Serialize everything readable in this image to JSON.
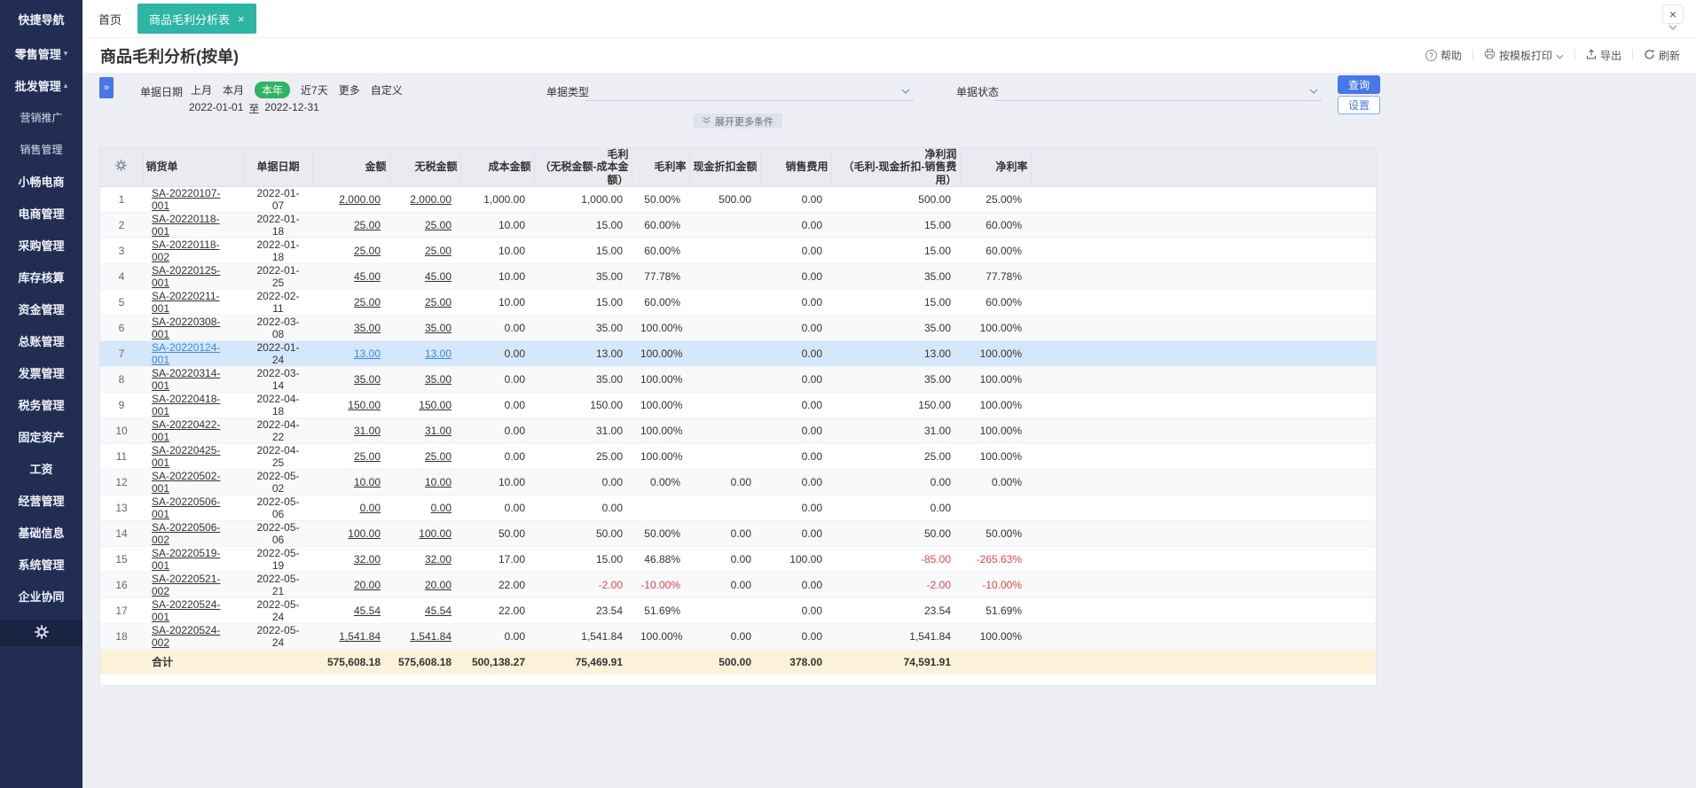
{
  "colors": {
    "sidebar_bg": "#212d52",
    "sidebar_strip": "#1a2342",
    "active_tab_teal": "#2db5a5",
    "quick_selected_green": "#2db55f",
    "primary_blue": "#4878e8",
    "selected_row_blue": "#d5e8fb",
    "totals_row_cream": "#fbf2d9",
    "negative_red": "#e5484d",
    "table_header_gray": "#e9ebf0"
  },
  "sidebar": {
    "items": [
      {
        "label": "快捷导航"
      },
      {
        "label": "零售管理",
        "caret": "down"
      },
      {
        "label": "批发管理",
        "caret": "up"
      },
      {
        "label": "营销推广",
        "sub": true
      },
      {
        "label": "销售管理",
        "sub": true
      },
      {
        "label": "小畅电商"
      },
      {
        "label": "电商管理"
      },
      {
        "label": "采购管理"
      },
      {
        "label": "库存核算"
      },
      {
        "label": "资金管理"
      },
      {
        "label": "总账管理"
      },
      {
        "label": "发票管理"
      },
      {
        "label": "税务管理"
      },
      {
        "label": "固定资产"
      },
      {
        "label": "工资"
      },
      {
        "label": "经营管理"
      },
      {
        "label": "基础信息"
      },
      {
        "label": "系统管理"
      },
      {
        "label": "企业协同"
      }
    ]
  },
  "tabs": {
    "home": "首页",
    "report": "商品毛利分析表"
  },
  "page": {
    "title": "商品毛利分析(按单)"
  },
  "actions": {
    "help": "帮助",
    "print": "按模板打印",
    "export": "导出",
    "refresh": "刷新"
  },
  "filters": {
    "date_label": "单据日期",
    "quick": [
      {
        "label": "上月"
      },
      {
        "label": "本月"
      },
      {
        "label": "本年",
        "selected": true
      },
      {
        "label": "近7天"
      },
      {
        "label": "更多"
      },
      {
        "label": "自定义"
      }
    ],
    "range": {
      "start": "2022-01-01",
      "sep": "至",
      "end": "2022-12-31"
    },
    "type_label": "单据类型",
    "status_label": "单据状态",
    "query": "查询",
    "settings": "设置",
    "more": "展开更多条件"
  },
  "table": {
    "columns": [
      "",
      "销货单",
      "单据日期",
      "金额",
      "无税金额",
      "成本金额",
      "毛利\n（无税金额-成本金额）",
      "毛利率",
      "现金折扣金额",
      "销售费用",
      "净利润\n（毛利-现金折扣-销售费用）",
      "净利率",
      ""
    ],
    "rows": [
      {
        "num": "1",
        "order": "SA-20220107-001",
        "date": "2022-01-07",
        "amount": "2,000.00",
        "tax_free": "2,000.00",
        "cost": "1,000.00",
        "gross": "1,000.00",
        "gross_rate": "50.00%",
        "cash_discount": "500.00",
        "expense": "0.00",
        "net": "500.00",
        "net_rate": "25.00%"
      },
      {
        "num": "2",
        "order": "SA-20220118-001",
        "date": "2022-01-18",
        "amount": "25.00",
        "tax_free": "25.00",
        "cost": "10.00",
        "gross": "15.00",
        "gross_rate": "60.00%",
        "cash_discount": "",
        "expense": "0.00",
        "net": "15.00",
        "net_rate": "60.00%"
      },
      {
        "num": "3",
        "order": "SA-20220118-002",
        "date": "2022-01-18",
        "amount": "25.00",
        "tax_free": "25.00",
        "cost": "10.00",
        "gross": "15.00",
        "gross_rate": "60.00%",
        "cash_discount": "",
        "expense": "0.00",
        "net": "15.00",
        "net_rate": "60.00%"
      },
      {
        "num": "4",
        "order": "SA-20220125-001",
        "date": "2022-01-25",
        "amount": "45.00",
        "tax_free": "45.00",
        "cost": "10.00",
        "gross": "35.00",
        "gross_rate": "77.78%",
        "cash_discount": "",
        "expense": "0.00",
        "net": "35.00",
        "net_rate": "77.78%"
      },
      {
        "num": "5",
        "order": "SA-20220211-001",
        "date": "2022-02-11",
        "amount": "25.00",
        "tax_free": "25.00",
        "cost": "10.00",
        "gross": "15.00",
        "gross_rate": "60.00%",
        "cash_discount": "",
        "expense": "0.00",
        "net": "15.00",
        "net_rate": "60.00%"
      },
      {
        "num": "6",
        "order": "SA-20220308-001",
        "date": "2022-03-08",
        "amount": "35.00",
        "tax_free": "35.00",
        "cost": "0.00",
        "gross": "35.00",
        "gross_rate": "100.00%",
        "cash_discount": "",
        "expense": "0.00",
        "net": "35.00",
        "net_rate": "100.00%"
      },
      {
        "num": "7",
        "order": "SA-20220124-001",
        "date": "2022-01-24",
        "amount": "13.00",
        "tax_free": "13.00",
        "cost": "0.00",
        "gross": "13.00",
        "gross_rate": "100.00%",
        "cash_discount": "",
        "expense": "0.00",
        "net": "13.00",
        "net_rate": "100.00%",
        "selected": true
      },
      {
        "num": "8",
        "order": "SA-20220314-001",
        "date": "2022-03-14",
        "amount": "35.00",
        "tax_free": "35.00",
        "cost": "0.00",
        "gross": "35.00",
        "gross_rate": "100.00%",
        "cash_discount": "",
        "expense": "0.00",
        "net": "35.00",
        "net_rate": "100.00%"
      },
      {
        "num": "9",
        "order": "SA-20220418-001",
        "date": "2022-04-18",
        "amount": "150.00",
        "tax_free": "150.00",
        "cost": "0.00",
        "gross": "150.00",
        "gross_rate": "100.00%",
        "cash_discount": "",
        "expense": "0.00",
        "net": "150.00",
        "net_rate": "100.00%"
      },
      {
        "num": "10",
        "order": "SA-20220422-001",
        "date": "2022-04-22",
        "amount": "31.00",
        "tax_free": "31.00",
        "cost": "0.00",
        "gross": "31.00",
        "gross_rate": "100.00%",
        "cash_discount": "",
        "expense": "0.00",
        "net": "31.00",
        "net_rate": "100.00%"
      },
      {
        "num": "11",
        "order": "SA-20220425-001",
        "date": "2022-04-25",
        "amount": "25.00",
        "tax_free": "25.00",
        "cost": "0.00",
        "gross": "25.00",
        "gross_rate": "100.00%",
        "cash_discount": "",
        "expense": "0.00",
        "net": "25.00",
        "net_rate": "100.00%"
      },
      {
        "num": "12",
        "order": "SA-20220502-001",
        "date": "2022-05-02",
        "amount": "10.00",
        "tax_free": "10.00",
        "cost": "10.00",
        "gross": "0.00",
        "gross_rate": "0.00%",
        "cash_discount": "0.00",
        "expense": "0.00",
        "net": "0.00",
        "net_rate": "0.00%"
      },
      {
        "num": "13",
        "order": "SA-20220506-001",
        "date": "2022-05-06",
        "amount": "0.00",
        "tax_free": "0.00",
        "cost": "0.00",
        "gross": "0.00",
        "gross_rate": "",
        "cash_discount": "",
        "expense": "0.00",
        "net": "0.00",
        "net_rate": ""
      },
      {
        "num": "14",
        "order": "SA-20220506-002",
        "date": "2022-05-06",
        "amount": "100.00",
        "tax_free": "100.00",
        "cost": "50.00",
        "gross": "50.00",
        "gross_rate": "50.00%",
        "cash_discount": "0.00",
        "expense": "0.00",
        "net": "50.00",
        "net_rate": "50.00%"
      },
      {
        "num": "15",
        "order": "SA-20220519-001",
        "date": "2022-05-19",
        "amount": "32.00",
        "tax_free": "32.00",
        "cost": "17.00",
        "gross": "15.00",
        "gross_rate": "46.88%",
        "cash_discount": "0.00",
        "expense": "100.00",
        "net": "-85.00",
        "net_rate": "-265.63%"
      },
      {
        "num": "16",
        "order": "SA-20220521-002",
        "date": "2022-05-21",
        "amount": "20.00",
        "tax_free": "20.00",
        "cost": "22.00",
        "gross": "-2.00",
        "gross_rate": "-10.00%",
        "cash_discount": "0.00",
        "expense": "0.00",
        "net": "-2.00",
        "net_rate": "-10.00%"
      },
      {
        "num": "17",
        "order": "SA-20220524-001",
        "date": "2022-05-24",
        "amount": "45.54",
        "tax_free": "45.54",
        "cost": "22.00",
        "gross": "23.54",
        "gross_rate": "51.69%",
        "cash_discount": "",
        "expense": "0.00",
        "net": "23.54",
        "net_rate": "51.69%"
      },
      {
        "num": "18",
        "order": "SA-20220524-002",
        "date": "2022-05-24",
        "amount": "1,541.84",
        "tax_free": "1,541.84",
        "cost": "0.00",
        "gross": "1,541.84",
        "gross_rate": "100.00%",
        "cash_discount": "0.00",
        "expense": "0.00",
        "net": "1,541.84",
        "net_rate": "100.00%"
      }
    ],
    "totals": {
      "label": "合计",
      "amount": "575,608.18",
      "tax_free": "575,608.18",
      "cost": "500,138.27",
      "gross": "75,469.91",
      "cash_discount": "500.00",
      "expense": "378.00",
      "net": "74,591.91"
    }
  }
}
